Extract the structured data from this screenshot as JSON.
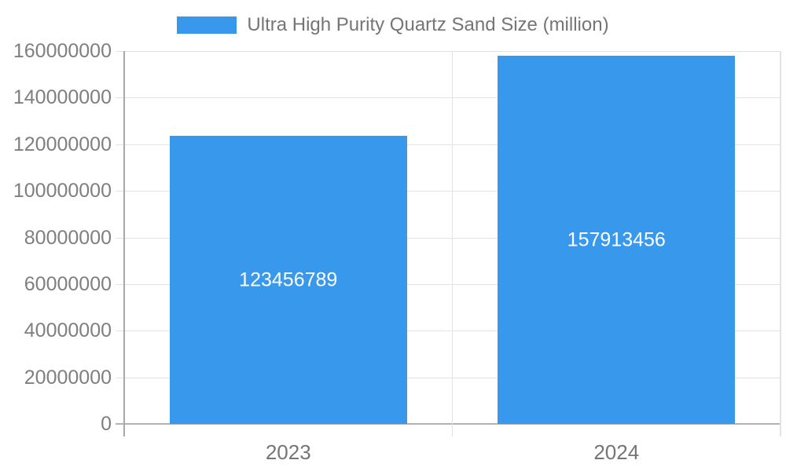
{
  "legend": {
    "label": "Ultra High Purity Quartz Sand Size (million)"
  },
  "chart_data": {
    "type": "bar",
    "title": "Ultra High Purity Quartz Sand Size (million)",
    "series_name": "Ultra High Purity Quartz Sand Size (million)",
    "categories": [
      "2023",
      "2024"
    ],
    "values": [
      123456789,
      157913456
    ],
    "data_labels": [
      "123456789",
      "157913456"
    ],
    "xlabel": "",
    "ylabel": "",
    "ylim": [
      0,
      160000000
    ],
    "ytick_step": 20000000,
    "yticks": [
      0,
      20000000,
      40000000,
      60000000,
      80000000,
      100000000,
      120000000,
      140000000,
      160000000
    ],
    "grid": true,
    "legend_position": "top-center",
    "bar_label_position": "center-inside"
  },
  "colors": {
    "bar": "#3899ec",
    "bar_label": "#ffffff",
    "grid": "#e3e3e3",
    "y_axis": "#a8a8a8",
    "x_axis": "#b3b3b3",
    "y_tick_label": "#7f7f7f",
    "x_tick_label": "#757575",
    "legend_text": "#757575",
    "background": "#ffffff"
  }
}
